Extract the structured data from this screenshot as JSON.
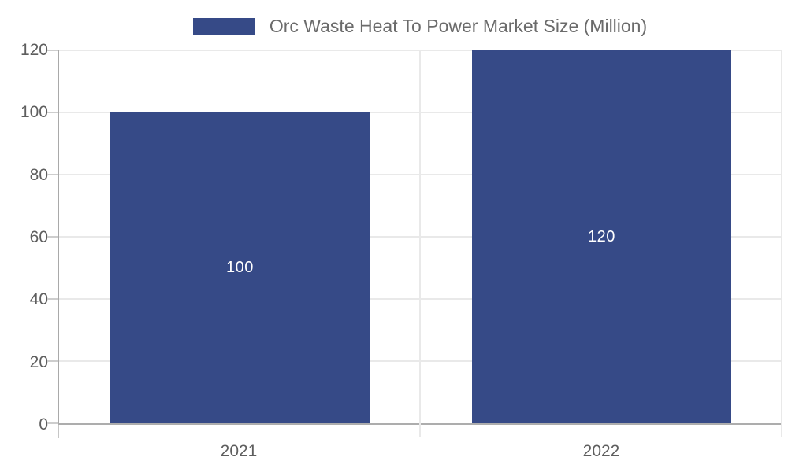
{
  "chart_data": {
    "type": "bar",
    "title": "Orc Waste Heat To Power Market Size (Million)",
    "legend": {
      "position": "top",
      "entries": [
        "Orc Waste Heat To Power Market Size (Million)"
      ]
    },
    "categories": [
      "2021",
      "2022"
    ],
    "series": [
      {
        "name": "Orc Waste Heat To Power Market Size (Million)",
        "values": [
          100,
          120
        ]
      }
    ],
    "value_labels": [
      "100",
      "120"
    ],
    "xlabel": "",
    "ylabel": "",
    "ylim": [
      0,
      120
    ],
    "yticks": [
      0,
      20,
      40,
      60,
      80,
      100,
      120
    ],
    "grid": true,
    "bar_width_fraction": 0.717,
    "bar_color": "#364a87",
    "value_label_color": "#ffffff"
  }
}
